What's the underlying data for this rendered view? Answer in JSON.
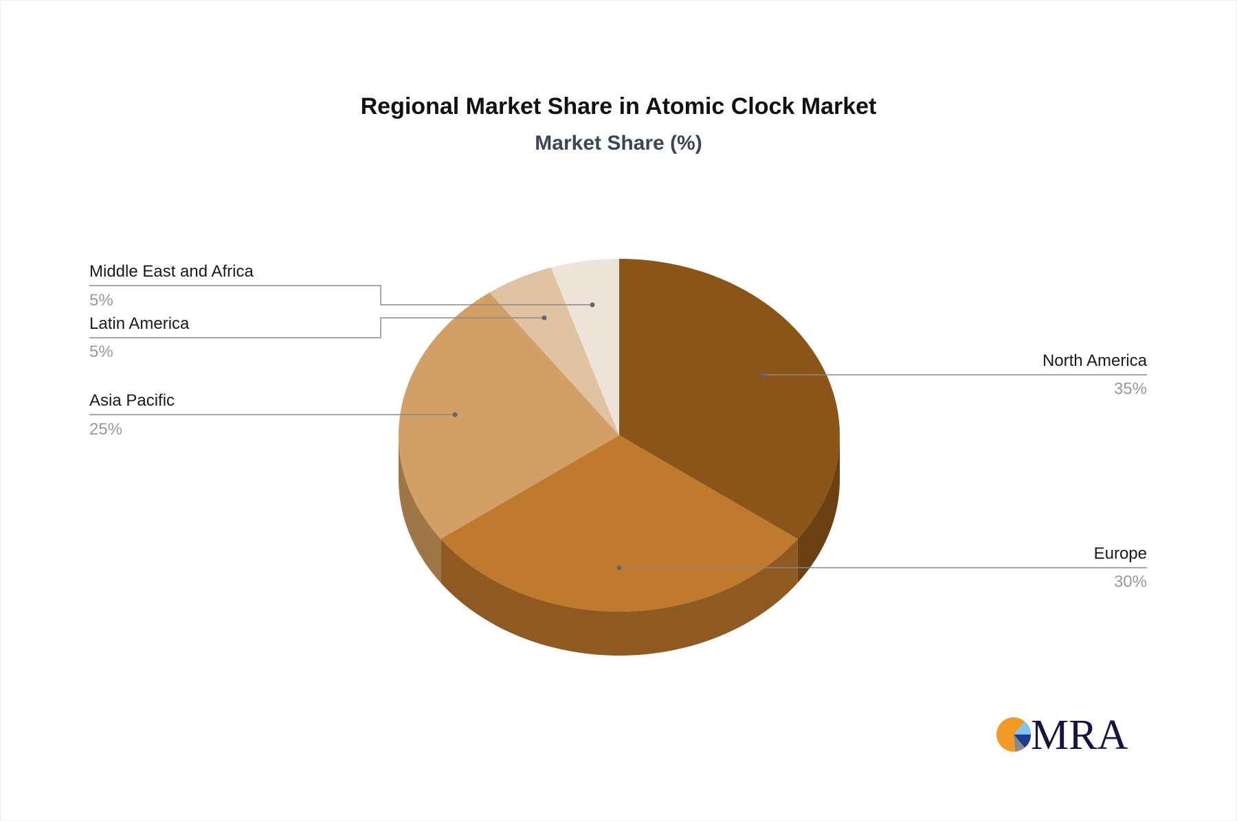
{
  "chart_data": {
    "type": "pie",
    "title": "Regional Market Share in Atomic Clock Market",
    "subtitle": "Market Share (%)",
    "categories": [
      "North America",
      "Europe",
      "Asia Pacific",
      "Latin America",
      "Middle East and Africa"
    ],
    "values": [
      35,
      30,
      25,
      5,
      5
    ],
    "value_labels": [
      "35%",
      "30%",
      "25%",
      "5%",
      "5%"
    ],
    "colors": [
      "#8B5418",
      "#C07A2E",
      "#D2A066",
      "#DFC3A3",
      "#EFE4DA"
    ],
    "side_colors": [
      "#6B4012",
      "#8E5A22",
      "#9E7748",
      "#B09478",
      "#C2B5A8"
    ],
    "style": "3d-pie",
    "labels_with_leader_lines": true
  },
  "logo": {
    "text": "MRA",
    "colors": [
      "#F39A26",
      "#7EC4EF",
      "#1D3C8F",
      "#8A8A8A",
      "#141540"
    ]
  }
}
